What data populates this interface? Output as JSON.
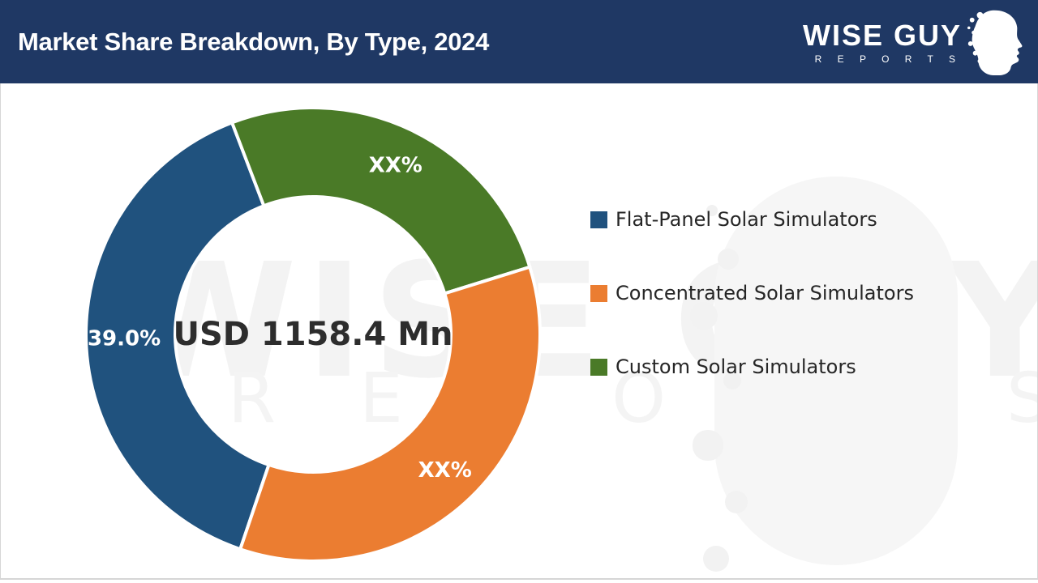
{
  "header": {
    "title": "Market Share Breakdown, By Type, 2024",
    "logo": {
      "name": "WISE GUY",
      "sub": "R E P O R T S"
    }
  },
  "watermark": {
    "line1": "WISE GUY",
    "line2": "R E P O R T S"
  },
  "chart_data": {
    "type": "pie",
    "subtype": "donut",
    "title": "Market Share Breakdown, By Type, 2024",
    "center_label": "USD 1158.4 Mn",
    "legend_position": "right",
    "start_angle_deg": 198.7,
    "draw_sequence": [
      0,
      2,
      1
    ],
    "segments": [
      {
        "name": "Flat-Panel Solar Simulators",
        "label": "39.0%",
        "value": 39.0,
        "color": "#20527E"
      },
      {
        "name": "Concentrated Solar Simulators",
        "label": "XX%",
        "value": 35.0,
        "color": "#EB7D31"
      },
      {
        "name": "Custom Solar Simulators",
        "label": "XX%",
        "value": 26.0,
        "color": "#4A7A27"
      }
    ]
  }
}
